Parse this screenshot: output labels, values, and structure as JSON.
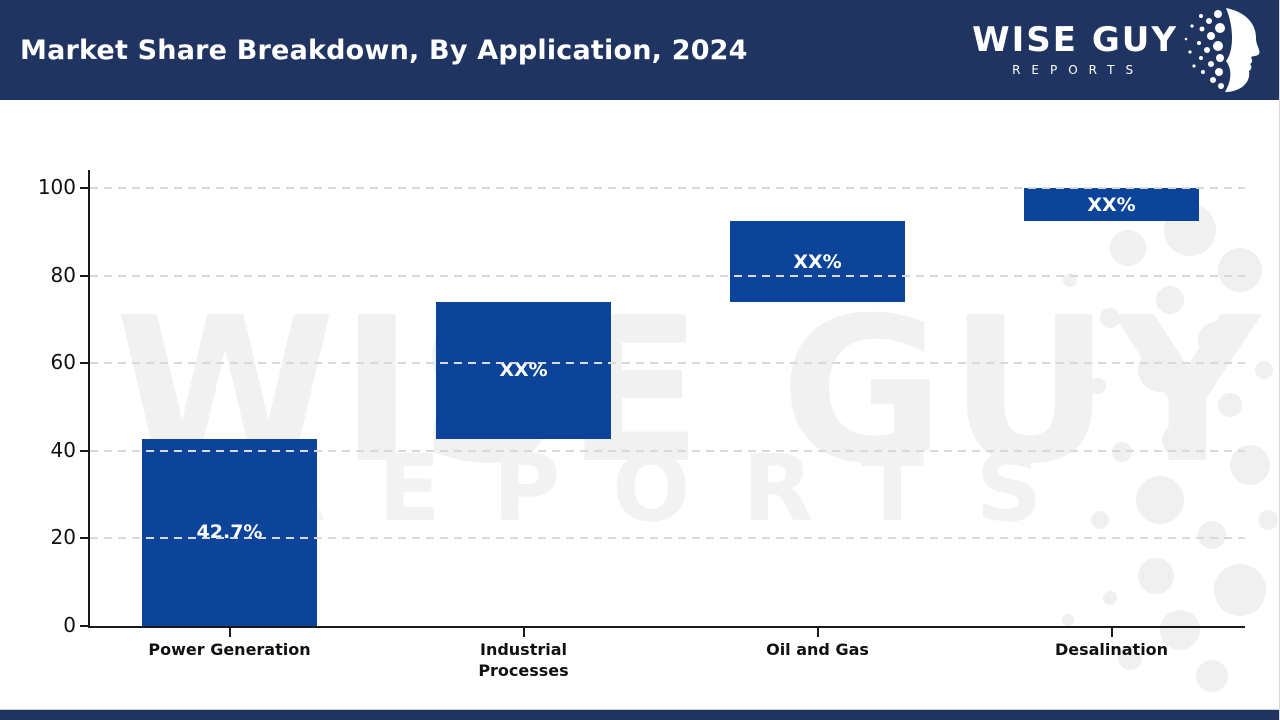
{
  "header": {
    "title": "Market Share Breakdown, By Application, 2024",
    "logo": {
      "wordmark": "WISE GUY",
      "subtext": "REPORTS"
    }
  },
  "watermark": {
    "line1": "WISE GUY",
    "line2": "REPORTS"
  },
  "chart_data": {
    "type": "bar",
    "subtype": "waterfall",
    "title": "Market Share Breakdown, By Application, 2024",
    "categories": [
      "Power Generation",
      "Industrial\nProcesses",
      "Oil and Gas",
      "Desalination"
    ],
    "segments": [
      {
        "category": "Power Generation",
        "start": 0,
        "end": 42.7,
        "label": "42.7%"
      },
      {
        "category": "Industrial\nProcesses",
        "start": 42.7,
        "end": 74.0,
        "label": "XX%"
      },
      {
        "category": "Oil and Gas",
        "start": 74.0,
        "end": 92.4,
        "label": "XX%"
      },
      {
        "category": "Desalination",
        "start": 92.4,
        "end": 100,
        "label": "XX%"
      }
    ],
    "xlabel": "",
    "ylabel": "",
    "ylim": [
      0,
      100
    ],
    "yticks": [
      0,
      20,
      40,
      60,
      80,
      100
    ],
    "grid": "horizontal dashed, drawn over bars",
    "legend": "none",
    "bar_color": "#0b4499",
    "bar_label_color": "#ffffff",
    "axis_color": "#1a1a1a",
    "header_color": "#203462"
  }
}
